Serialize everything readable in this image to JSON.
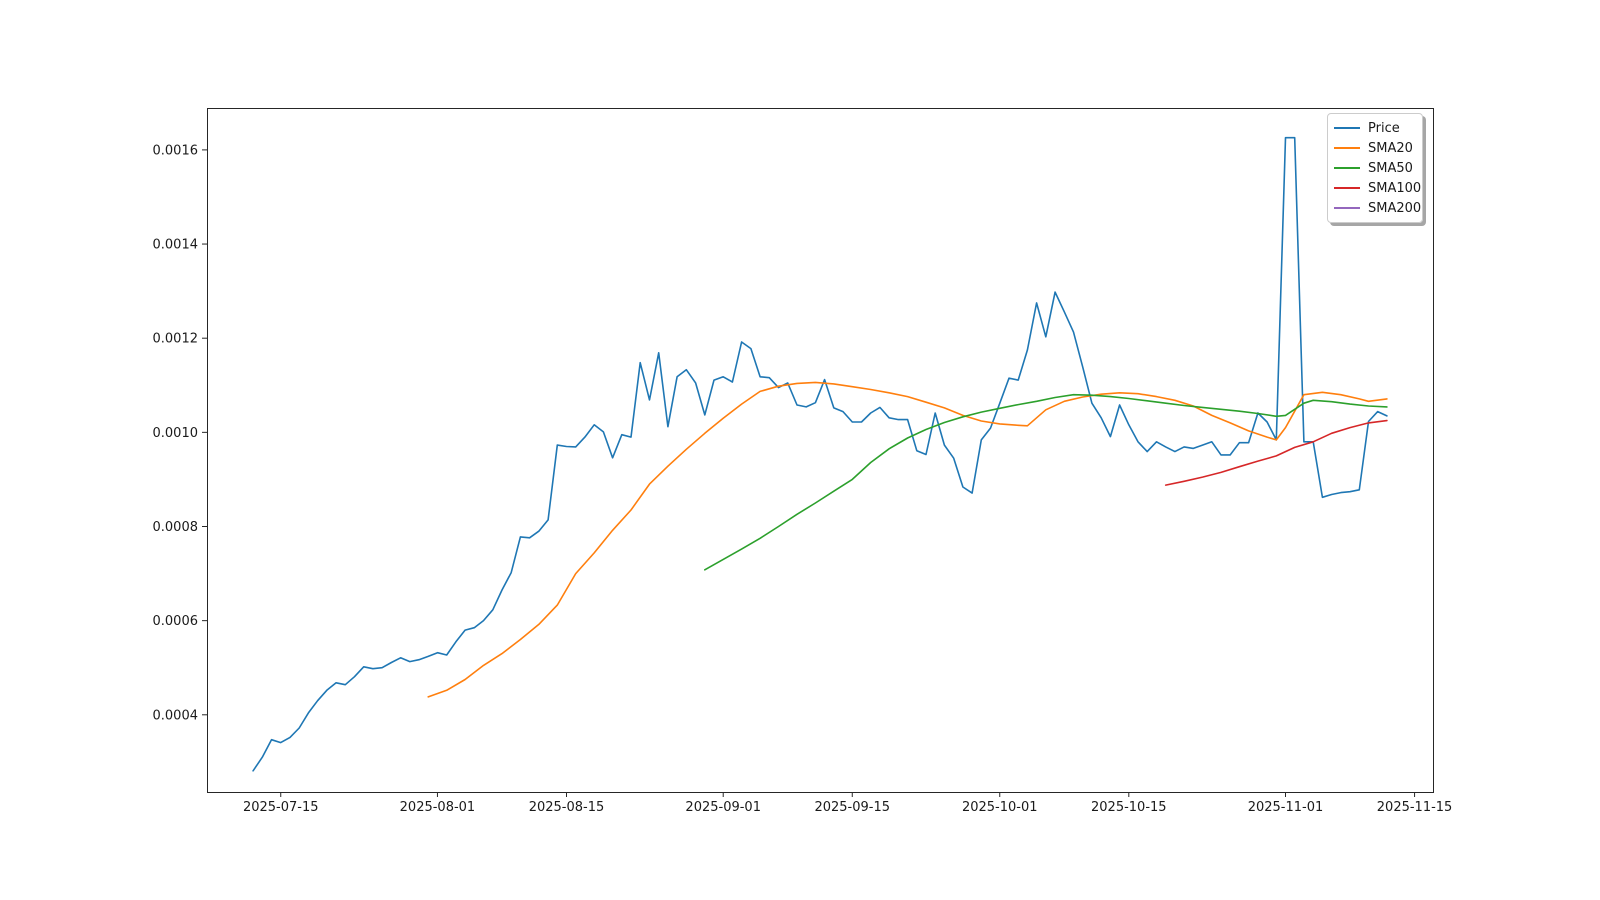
{
  "figure": {
    "background_color": "#ffffff",
    "text_color": "#1a1a1a"
  },
  "chart_data": {
    "type": "line",
    "title": "",
    "xlabel": "",
    "ylabel": "",
    "grid": false,
    "xlim": [
      "2025-07-07",
      "2025-11-17"
    ],
    "ylim": [
      0.000236,
      0.001689
    ],
    "x_ticks": [
      "2025-07-15",
      "2025-08-01",
      "2025-08-15",
      "2025-09-01",
      "2025-09-15",
      "2025-10-01",
      "2025-10-15",
      "2025-11-01",
      "2025-11-15"
    ],
    "y_ticks": [
      {
        "value": 0.0004,
        "label": "0.0004"
      },
      {
        "value": 0.0006,
        "label": "0.0006"
      },
      {
        "value": 0.0008,
        "label": "0.0008"
      },
      {
        "value": 0.001,
        "label": "0.0010"
      },
      {
        "value": 0.0012,
        "label": "0.0012"
      },
      {
        "value": 0.0014,
        "label": "0.0014"
      },
      {
        "value": 0.0016,
        "label": "0.0016"
      }
    ],
    "legend": {
      "position": "upper right",
      "entries": [
        "Price",
        "SMA20",
        "SMA50",
        "SMA100",
        "SMA200"
      ]
    },
    "series": [
      {
        "name": "Price",
        "color": "#1f77b4",
        "start": "2025-07-12",
        "daily_values": [
          0.000281,
          0.00031,
          0.000347,
          0.000341,
          0.000352,
          0.000372,
          0.000404,
          0.00043,
          0.000452,
          0.000468,
          0.000464,
          0.000481,
          0.000502,
          0.000498,
          0.0005,
          0.000511,
          0.000521,
          0.000513,
          0.000517,
          0.000524,
          0.000532,
          0.000527,
          0.000555,
          0.00058,
          0.000585,
          0.0006,
          0.000623,
          0.000665,
          0.000702,
          0.000778,
          0.000776,
          0.00079,
          0.000814,
          0.000973,
          0.00097,
          0.000969,
          0.00099,
          0.001016,
          0.001001,
          0.000946,
          0.000995,
          0.00099,
          0.001148,
          0.001069,
          0.001169,
          0.001012,
          0.001118,
          0.001133,
          0.001105,
          0.001037,
          0.001111,
          0.001118,
          0.001107,
          0.001192,
          0.001178,
          0.001118,
          0.001116,
          0.001095,
          0.001105,
          0.001058,
          0.001054,
          0.001063,
          0.001112,
          0.001052,
          0.001044,
          0.001022,
          0.001022,
          0.001041,
          0.001053,
          0.001031,
          0.001027,
          0.001027,
          0.000961,
          0.000953,
          0.001041,
          0.000973,
          0.000945,
          0.000884,
          0.000871,
          0.000984,
          0.001009,
          0.001062,
          0.001115,
          0.001111,
          0.001175,
          0.001275,
          0.001203,
          0.001298,
          0.001256,
          0.001213,
          0.001139,
          0.001062,
          0.001031,
          0.000991,
          0.001058,
          0.001016,
          0.00098,
          0.000959,
          0.00098,
          0.000969,
          0.000959,
          0.000969,
          0.000966,
          0.000973,
          0.00098,
          0.000952,
          0.000952,
          0.000978,
          0.000978,
          0.001041,
          0.001022,
          0.000984,
          0.001626,
          0.001626,
          0.00098,
          0.00098,
          0.000862,
          0.000868,
          0.000872,
          0.000874,
          0.000878,
          0.001023,
          0.001044,
          0.001035
        ]
      },
      {
        "name": "SMA20",
        "color": "#ff7f0e",
        "points": [
          [
            "2025-07-31",
            0.000438
          ],
          [
            "2025-08-02",
            0.000452
          ],
          [
            "2025-08-04",
            0.000475
          ],
          [
            "2025-08-06",
            0.000505
          ],
          [
            "2025-08-08",
            0.00053
          ],
          [
            "2025-08-10",
            0.00056
          ],
          [
            "2025-08-12",
            0.000592
          ],
          [
            "2025-08-14",
            0.000633
          ],
          [
            "2025-08-16",
            0.0007
          ],
          [
            "2025-08-18",
            0.000744
          ],
          [
            "2025-08-20",
            0.000792
          ],
          [
            "2025-08-22",
            0.000835
          ],
          [
            "2025-08-24",
            0.00089
          ],
          [
            "2025-08-26",
            0.000928
          ],
          [
            "2025-08-28",
            0.000964
          ],
          [
            "2025-08-30",
            0.000998
          ],
          [
            "2025-09-01",
            0.00103
          ],
          [
            "2025-09-03",
            0.00106
          ],
          [
            "2025-09-05",
            0.001087
          ],
          [
            "2025-09-07",
            0.001098
          ],
          [
            "2025-09-09",
            0.001104
          ],
          [
            "2025-09-11",
            0.001106
          ],
          [
            "2025-09-13",
            0.001103
          ],
          [
            "2025-09-15",
            0.001097
          ],
          [
            "2025-09-17",
            0.001091
          ],
          [
            "2025-09-19",
            0.001084
          ],
          [
            "2025-09-21",
            0.001076
          ],
          [
            "2025-09-23",
            0.001064
          ],
          [
            "2025-09-25",
            0.001052
          ],
          [
            "2025-09-27",
            0.001036
          ],
          [
            "2025-09-29",
            0.001024
          ],
          [
            "2025-10-01",
            0.001018
          ],
          [
            "2025-10-03",
            0.001015
          ],
          [
            "2025-10-04",
            0.001014
          ],
          [
            "2025-10-06",
            0.001048
          ],
          [
            "2025-10-08",
            0.001066
          ],
          [
            "2025-10-10",
            0.001075
          ],
          [
            "2025-10-12",
            0.001081
          ],
          [
            "2025-10-14",
            0.001084
          ],
          [
            "2025-10-16",
            0.001082
          ],
          [
            "2025-10-18",
            0.001076
          ],
          [
            "2025-10-20",
            0.001068
          ],
          [
            "2025-10-22",
            0.001056
          ],
          [
            "2025-10-24",
            0.001036
          ],
          [
            "2025-10-26",
            0.00102
          ],
          [
            "2025-10-28",
            0.001003
          ],
          [
            "2025-10-30",
            0.00099
          ],
          [
            "2025-10-31",
            0.000984
          ],
          [
            "2025-11-01",
            0.00101
          ],
          [
            "2025-11-02",
            0.001045
          ],
          [
            "2025-11-03",
            0.00108
          ],
          [
            "2025-11-05",
            0.001085
          ],
          [
            "2025-11-07",
            0.00108
          ],
          [
            "2025-11-09",
            0.001071
          ],
          [
            "2025-11-10",
            0.001066
          ],
          [
            "2025-11-12",
            0.001071
          ]
        ]
      },
      {
        "name": "SMA50",
        "color": "#2ca02c",
        "points": [
          [
            "2025-08-30",
            0.000708
          ],
          [
            "2025-09-01",
            0.00073
          ],
          [
            "2025-09-03",
            0.000752
          ],
          [
            "2025-09-05",
            0.000775
          ],
          [
            "2025-09-07",
            0.0008
          ],
          [
            "2025-09-09",
            0.000826
          ],
          [
            "2025-09-11",
            0.00085
          ],
          [
            "2025-09-13",
            0.000875
          ],
          [
            "2025-09-15",
            0.0009
          ],
          [
            "2025-09-17",
            0.000936
          ],
          [
            "2025-09-19",
            0.000965
          ],
          [
            "2025-09-21",
            0.000988
          ],
          [
            "2025-09-23",
            0.001006
          ],
          [
            "2025-09-25",
            0.001021
          ],
          [
            "2025-09-27",
            0.001033
          ],
          [
            "2025-09-29",
            0.001043
          ],
          [
            "2025-10-01",
            0.001051
          ],
          [
            "2025-10-03",
            0.001059
          ],
          [
            "2025-10-05",
            0.001066
          ],
          [
            "2025-10-07",
            0.001074
          ],
          [
            "2025-10-09",
            0.00108
          ],
          [
            "2025-10-11",
            0.001079
          ],
          [
            "2025-10-13",
            0.001076
          ],
          [
            "2025-10-15",
            0.001072
          ],
          [
            "2025-10-17",
            0.001067
          ],
          [
            "2025-10-19",
            0.001062
          ],
          [
            "2025-10-21",
            0.001057
          ],
          [
            "2025-10-23",
            0.001053
          ],
          [
            "2025-10-25",
            0.001049
          ],
          [
            "2025-10-27",
            0.001045
          ],
          [
            "2025-10-29",
            0.00104
          ],
          [
            "2025-10-31",
            0.001034
          ],
          [
            "2025-11-01",
            0.001036
          ],
          [
            "2025-11-03",
            0.001062
          ],
          [
            "2025-11-04",
            0.001068
          ],
          [
            "2025-11-06",
            0.001065
          ],
          [
            "2025-11-08",
            0.00106
          ],
          [
            "2025-11-10",
            0.001056
          ],
          [
            "2025-11-12",
            0.001054
          ]
        ]
      },
      {
        "name": "SMA100",
        "color": "#d62728",
        "points": [
          [
            "2025-10-19",
            0.000888
          ],
          [
            "2025-10-21",
            0.000896
          ],
          [
            "2025-10-23",
            0.000905
          ],
          [
            "2025-10-25",
            0.000915
          ],
          [
            "2025-10-27",
            0.000927
          ],
          [
            "2025-10-29",
            0.000939
          ],
          [
            "2025-10-31",
            0.00095
          ],
          [
            "2025-11-02",
            0.000968
          ],
          [
            "2025-11-04",
            0.00098
          ],
          [
            "2025-11-06",
            0.000998
          ],
          [
            "2025-11-08",
            0.00101
          ],
          [
            "2025-11-10",
            0.00102
          ],
          [
            "2025-11-12",
            0.001025
          ]
        ]
      },
      {
        "name": "SMA200",
        "color": "#9467bd",
        "points": []
      }
    ]
  }
}
